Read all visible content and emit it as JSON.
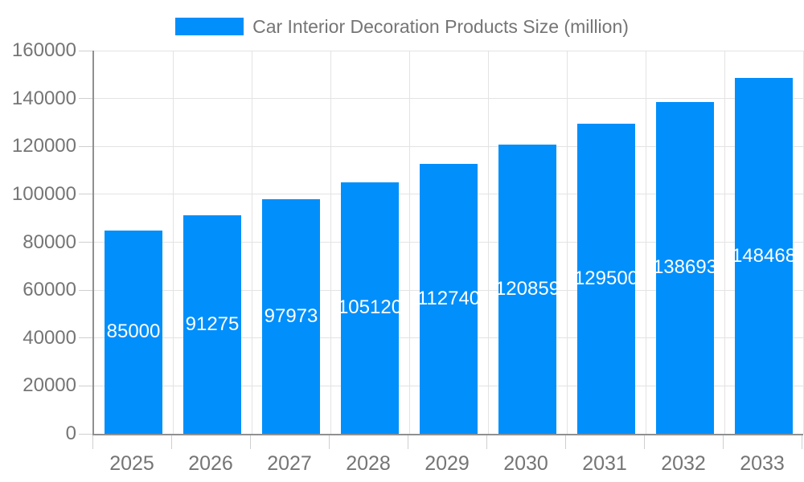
{
  "chart_data": {
    "type": "bar",
    "title": "Car Interior Decoration Products Size (million)",
    "categories": [
      "2025",
      "2026",
      "2027",
      "2028",
      "2029",
      "2030",
      "2031",
      "2032",
      "2033"
    ],
    "values": [
      85000,
      91275,
      97973,
      105120,
      112740,
      120859,
      129500,
      138693,
      148468
    ],
    "xlabel": "",
    "ylabel": "",
    "ylim": [
      0,
      160000
    ],
    "yticks": [
      0,
      20000,
      40000,
      60000,
      80000,
      100000,
      120000,
      140000,
      160000
    ],
    "grid": true,
    "legend_position": "top",
    "bar_labels": "inside-center-white",
    "colors": {
      "bar": "#008FFB",
      "axis_text": "#757575",
      "grid_line": "#e3e3e3",
      "tick_line": "#cfcfcf",
      "axis_line": "#909090",
      "bar_label": "#ffffff",
      "background": "#ffffff"
    }
  }
}
